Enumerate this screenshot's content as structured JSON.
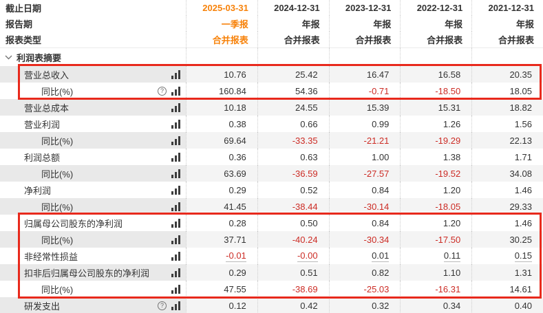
{
  "table": {
    "header_rows": [
      {
        "label": "截止日期",
        "values": [
          "2025-03-31",
          "2024-12-31",
          "2023-12-31",
          "2022-12-31",
          "2021-12-31"
        ]
      },
      {
        "label": "报告期",
        "values": [
          "一季报",
          "年报",
          "年报",
          "年报",
          "年报"
        ]
      },
      {
        "label": "报表类型",
        "values": [
          "合并报表",
          "合并报表",
          "合并报表",
          "合并报表",
          "合并报表"
        ]
      }
    ],
    "section": {
      "title": "利润表摘要",
      "state": "expanded"
    },
    "rows": [
      {
        "label": "营业总收入",
        "indent": 1,
        "help": false,
        "chart": true,
        "striped": true,
        "underline": false,
        "values": [
          "10.76",
          "25.42",
          "16.47",
          "16.58",
          "20.35"
        ]
      },
      {
        "label": "同比(%)",
        "indent": 2,
        "help": true,
        "chart": true,
        "striped": false,
        "underline": false,
        "values": [
          "160.84",
          "54.36",
          "-0.71",
          "-18.50",
          "18.05"
        ]
      },
      {
        "label": "营业总成本",
        "indent": 1,
        "help": false,
        "chart": true,
        "striped": true,
        "underline": false,
        "values": [
          "10.18",
          "24.55",
          "15.39",
          "15.31",
          "18.82"
        ]
      },
      {
        "label": "营业利润",
        "indent": 1,
        "help": false,
        "chart": true,
        "striped": false,
        "underline": false,
        "values": [
          "0.38",
          "0.66",
          "0.99",
          "1.26",
          "1.56"
        ]
      },
      {
        "label": "同比(%)",
        "indent": 2,
        "help": false,
        "chart": true,
        "striped": true,
        "underline": false,
        "values": [
          "69.64",
          "-33.35",
          "-21.21",
          "-19.29",
          "22.13"
        ]
      },
      {
        "label": "利润总额",
        "indent": 1,
        "help": false,
        "chart": true,
        "striped": false,
        "underline": false,
        "values": [
          "0.36",
          "0.63",
          "1.00",
          "1.38",
          "1.71"
        ]
      },
      {
        "label": "同比(%)",
        "indent": 2,
        "help": false,
        "chart": true,
        "striped": true,
        "underline": false,
        "values": [
          "63.69",
          "-36.59",
          "-27.57",
          "-19.52",
          "34.08"
        ]
      },
      {
        "label": "净利润",
        "indent": 1,
        "help": false,
        "chart": true,
        "striped": false,
        "underline": false,
        "values": [
          "0.29",
          "0.52",
          "0.84",
          "1.20",
          "1.46"
        ]
      },
      {
        "label": "同比(%)",
        "indent": 2,
        "help": false,
        "chart": true,
        "striped": true,
        "underline": false,
        "values": [
          "41.45",
          "-38.44",
          "-30.14",
          "-18.05",
          "29.33"
        ]
      },
      {
        "label": "归属母公司股东的净利润",
        "indent": 1,
        "help": false,
        "chart": true,
        "striped": false,
        "underline": false,
        "values": [
          "0.28",
          "0.50",
          "0.84",
          "1.20",
          "1.46"
        ]
      },
      {
        "label": "同比(%)",
        "indent": 2,
        "help": false,
        "chart": true,
        "striped": true,
        "underline": false,
        "values": [
          "37.71",
          "-40.24",
          "-30.34",
          "-17.50",
          "30.25"
        ]
      },
      {
        "label": "非经常性损益",
        "indent": 1,
        "help": false,
        "chart": true,
        "striped": false,
        "underline": true,
        "values": [
          "-0.01",
          "-0.00",
          "0.01",
          "0.11",
          "0.15"
        ]
      },
      {
        "label": "扣非后归属母公司股东的净利润",
        "indent": 1,
        "help": false,
        "chart": true,
        "striped": true,
        "underline": false,
        "values": [
          "0.29",
          "0.51",
          "0.82",
          "1.10",
          "1.31"
        ]
      },
      {
        "label": "同比(%)",
        "indent": 2,
        "help": false,
        "chart": true,
        "striped": false,
        "underline": false,
        "values": [
          "47.55",
          "-38.69",
          "-25.03",
          "-16.31",
          "14.61"
        ]
      },
      {
        "label": "研发支出",
        "indent": 1,
        "help": true,
        "chart": true,
        "striped": true,
        "underline": false,
        "values": [
          "0.12",
          "0.42",
          "0.32",
          "0.34",
          "0.40"
        ]
      }
    ],
    "icons": {
      "help_glyph": "?",
      "bar_chart": "bar-chart",
      "chevron": "chevron-down"
    },
    "colors": {
      "accent_orange": "#f7820a",
      "negative_red": "#cc2b24",
      "highlight_box_red": "#e8291c",
      "stripe_label": "#e9e9e9",
      "stripe_value": "#f4f4f4",
      "text": "#333333"
    },
    "highlight_boxes": [
      {
        "name": "revenue-highlight",
        "covers": "营业总收入 + 同比(%)"
      },
      {
        "name": "net-profit-highlight",
        "covers": "归属母公司股东的净利润 ~ 扣非后同比(%)"
      }
    ]
  }
}
